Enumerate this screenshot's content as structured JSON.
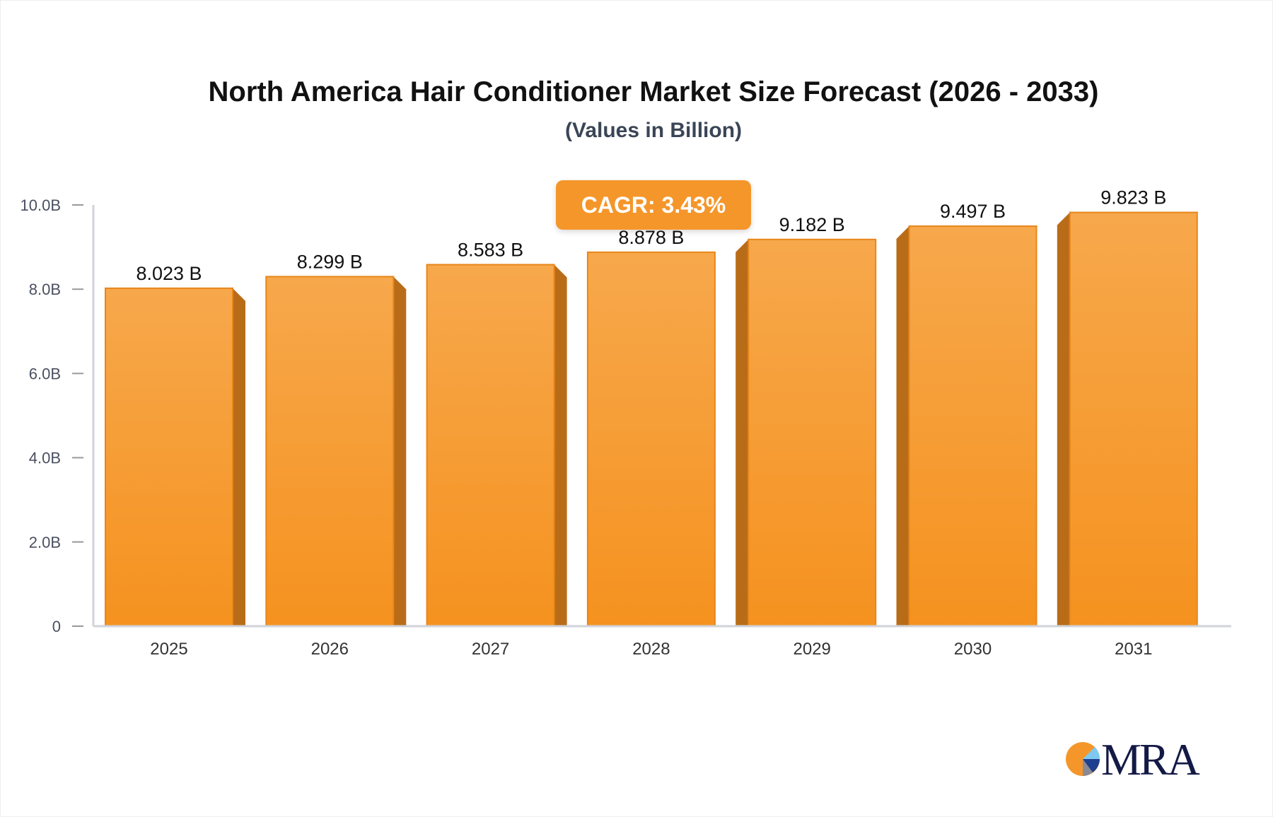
{
  "chart_data": {
    "type": "bar",
    "title": "North America Hair Conditioner Market Size Forecast (2026 - 2033)",
    "subtitle": "(Values in Billion)",
    "categories": [
      "2025",
      "2026",
      "2027",
      "2028",
      "2029",
      "2030",
      "2031"
    ],
    "values": [
      8.023,
      8.299,
      8.583,
      8.878,
      9.182,
      9.497,
      9.823
    ],
    "data_labels": [
      "8.023 B",
      "8.299 B",
      "8.583 B",
      "8.878 B",
      "9.182 B",
      "9.497 B",
      "9.823 B"
    ],
    "ylim": [
      0,
      10
    ],
    "yticks": [
      0,
      2,
      4,
      6,
      8,
      10
    ],
    "ytick_labels": [
      "0",
      "2.0B",
      "4.0B",
      "6.0B",
      "8.0B",
      "10.0B"
    ],
    "grid": false,
    "annotation": "CAGR: 3.43%",
    "colors": {
      "bar": "#f5962a",
      "bar_top": "#f7a84c",
      "bar_side": "#b96c18",
      "axis": "#d0d3da"
    }
  },
  "logo": {
    "text": "MRA"
  }
}
